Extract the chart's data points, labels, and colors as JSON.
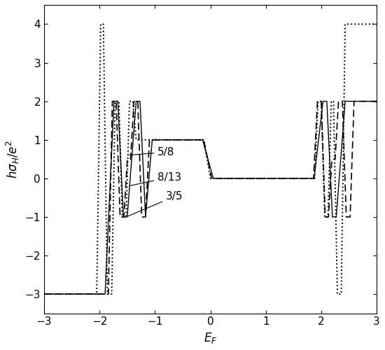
{
  "title": "",
  "xlabel": "E_F",
  "ylabel": "h\\sigma_H/e^2",
  "xlim": [
    -3,
    3
  ],
  "ylim": [
    -3.5,
    4.5
  ],
  "xticks": [
    -3,
    -2,
    -1,
    0,
    1,
    2,
    3
  ],
  "yticks": [
    -3,
    -2,
    -1,
    0,
    1,
    2,
    3,
    4
  ],
  "figsize": [
    5.5,
    5.0
  ],
  "dpi": 100
}
